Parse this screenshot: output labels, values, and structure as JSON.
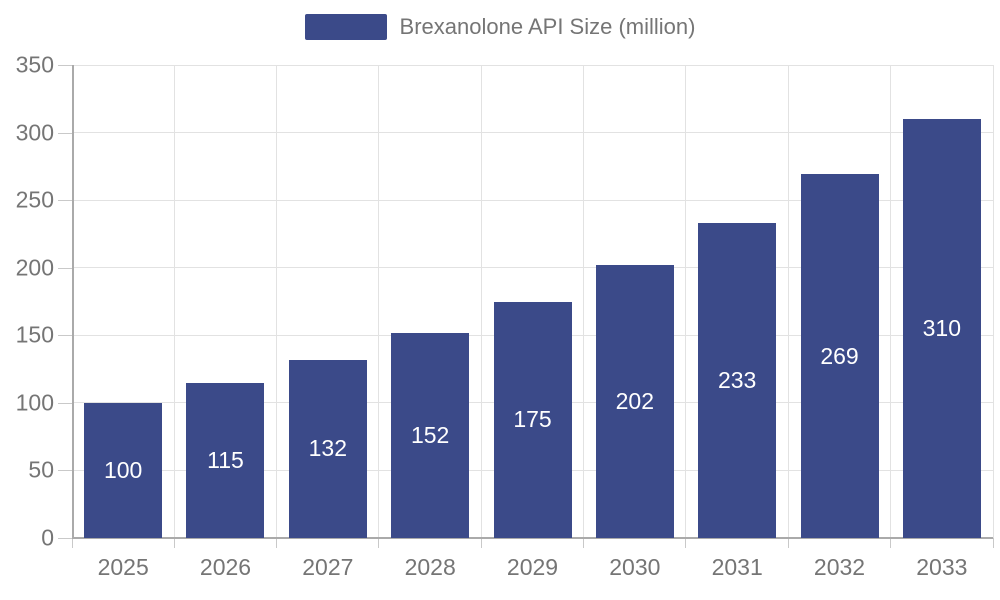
{
  "legend": {
    "label": "Brexanolone API Size (million)"
  },
  "colors": {
    "bar": "#3B4A89",
    "bar_label": "#FFFFFF",
    "axis_line": "#AAAAAA",
    "gridline": "#E2E2E2",
    "tick": "#C9C9C9",
    "tick_label": "#757575",
    "legend_text": "#757575",
    "background": "#FFFFFF"
  },
  "chart_data": {
    "type": "bar",
    "title": "Brexanolone API Size (million)",
    "categories": [
      "2025",
      "2026",
      "2027",
      "2028",
      "2029",
      "2030",
      "2031",
      "2032",
      "2033"
    ],
    "values": [
      100,
      115,
      132,
      152,
      175,
      202,
      233,
      269,
      310
    ],
    "xlabel": "",
    "ylabel": "",
    "ylim": [
      0,
      350
    ],
    "yticks": [
      0,
      50,
      100,
      150,
      200,
      250,
      300,
      350
    ],
    "grid": true,
    "legend_position": "top",
    "bar_value_labels": true
  }
}
